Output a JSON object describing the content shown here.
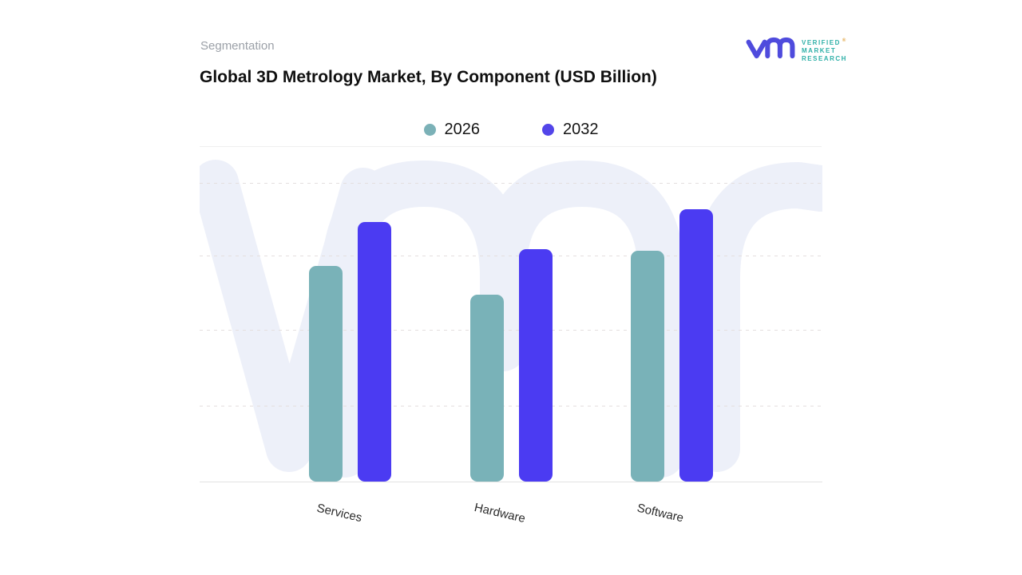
{
  "header": {
    "eyebrow": "Segmentation",
    "title": "Global 3D Metrology Market, By Component (USD Billion)"
  },
  "brand": {
    "line1": "VERIFIED",
    "line2": "MARKET",
    "line3": "RESEARCH",
    "registered": "®",
    "mark_color": "#4f4bdd",
    "text_color": "#2fb0a8"
  },
  "legend": {
    "items": [
      {
        "label": "2026",
        "color": "#7bb1b7"
      },
      {
        "label": "2032",
        "color": "#5345e9"
      }
    ],
    "position": "top-center"
  },
  "chart_data": {
    "type": "bar",
    "title": "Global 3D Metrology Market, By Component (USD Billion)",
    "categories": [
      "Services",
      "Hardware",
      "Software"
    ],
    "series": [
      {
        "name": "2026",
        "color": "#79b2b8",
        "values": [
          2.87,
          2.49,
          3.07
        ]
      },
      {
        "name": "2032",
        "color": "#4b3bf2",
        "values": [
          3.45,
          3.09,
          3.62
        ]
      }
    ],
    "xlabel": "",
    "ylabel": "",
    "ylim": [
      0,
      4.45
    ],
    "grid": "4 dashed horizontal gridlines, unlabeled y-axis, solid baseline",
    "legend_position": "top-center",
    "note": "No numeric axis labels shown in chart; values estimated from gridline spacing (1 unit per gridline)"
  },
  "watermark": {
    "glyph": "vmr-logo-watermark",
    "color": "#edf0f9"
  }
}
